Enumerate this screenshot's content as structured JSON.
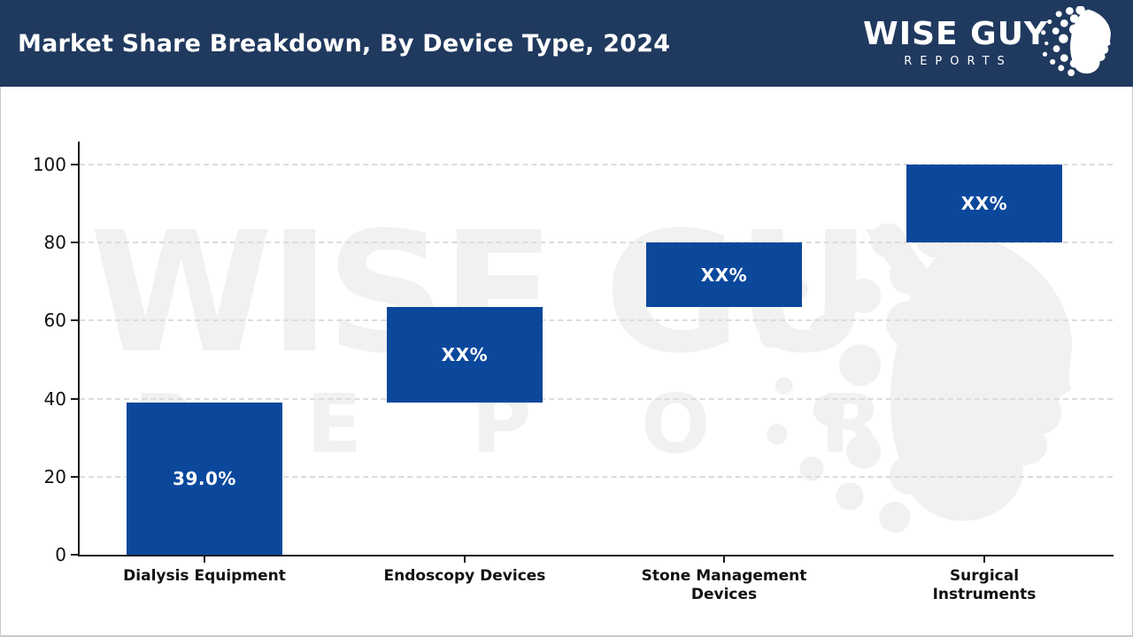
{
  "header": {
    "title": "Market Share Breakdown, By Device Type, 2024",
    "logo_line1": "WISE GUY",
    "logo_line2": "REPORTS"
  },
  "watermark": {
    "line1": "WISE GUY",
    "line2": "R E P O R T S"
  },
  "colors": {
    "header_bg": "#20395e",
    "bar": "#0b489c",
    "bar_label": "#ffffff",
    "axis": "#1a1a1a",
    "gridline": "#dcdcdc",
    "watermark": "#f1f1f1"
  },
  "chart_data": {
    "type": "bar",
    "subtype": "waterfall-style market share breakdown (floating stacked segments)",
    "title": "Market Share Breakdown, By Device Type, 2024",
    "categories": [
      "Dialysis Equipment",
      "Endoscopy Devices",
      "Stone Management Devices",
      "Surgical Instruments"
    ],
    "tick_labels": [
      "Dialysis Equipment",
      "Endoscopy Devices",
      "Stone Management\nDevices",
      "Surgical\nInstruments"
    ],
    "segments": [
      {
        "category": "Dialysis Equipment",
        "start": 0,
        "end": 39,
        "value": 39.0,
        "label": "39.0%"
      },
      {
        "category": "Endoscopy Devices",
        "start": 39,
        "end": 63.5,
        "value": 24.5,
        "label": "XX%"
      },
      {
        "category": "Stone Management Devices",
        "start": 63.5,
        "end": 80,
        "value": 16.5,
        "label": "XX%"
      },
      {
        "category": "Surgical Instruments",
        "start": 80,
        "end": 100,
        "value": 20.0,
        "label": "XX%"
      }
    ],
    "yticks": [
      0,
      20,
      40,
      60,
      80,
      100
    ],
    "ylim": [
      0,
      100
    ],
    "xlabel": "",
    "ylabel": "",
    "grid": "horizontal dashed gridlines at y ticks",
    "legend": null
  }
}
